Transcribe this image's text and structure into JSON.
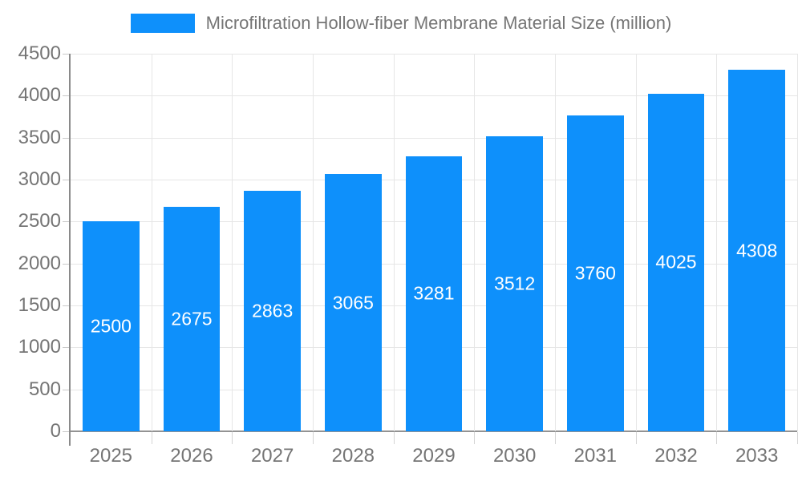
{
  "legend": {
    "label": "Microfiltration Hollow-fiber Membrane Material Size (million)",
    "swatch_color": "#0e90fb"
  },
  "chart_data": {
    "type": "bar",
    "title": "Microfiltration Hollow-fiber Membrane Material Size (million)",
    "categories": [
      "2025",
      "2026",
      "2027",
      "2028",
      "2029",
      "2030",
      "2031",
      "2032",
      "2033"
    ],
    "values": [
      2500,
      2675,
      2863,
      3065,
      3281,
      3512,
      3760,
      4025,
      4308
    ],
    "xlabel": "",
    "ylabel": "",
    "ylim": [
      0,
      4500
    ],
    "yticks": [
      0,
      500,
      1000,
      1500,
      2000,
      2500,
      3000,
      3500,
      4000,
      4500
    ],
    "grid": true,
    "legend_position": "top",
    "colors": {
      "bar": "#0e90fb",
      "bar_value_label": "#ffffff",
      "tick_label": "#757575",
      "grid_line": "#e6e6e6",
      "axis_line": "#8a8a8a"
    }
  }
}
